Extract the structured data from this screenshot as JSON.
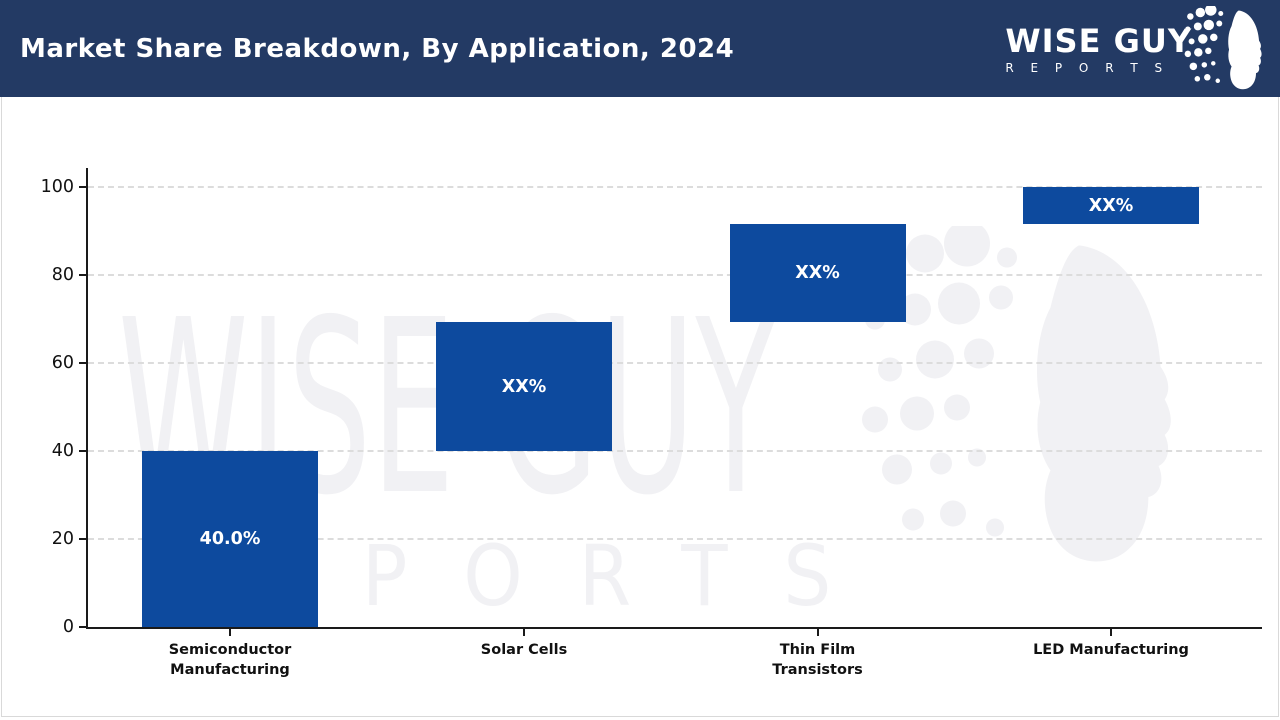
{
  "header": {
    "title": "Market Share Breakdown, By Application, 2024",
    "logo": {
      "line1": "WISE GUY",
      "line2": "R E P O R T S"
    }
  },
  "watermark": {
    "line1": "WISE GUY",
    "line2": "REPORTS"
  },
  "chart_data": {
    "type": "bar",
    "subtype": "waterfall-floating-bars",
    "title": "Market Share Breakdown, By Application, 2024",
    "categories": [
      "Semiconductor\nManufacturing",
      "Solar Cells",
      "Thin Film\nTransistors",
      "LED Manufacturing"
    ],
    "segments": [
      {
        "category": "Semiconductor Manufacturing",
        "start": 0,
        "end": 40,
        "value_label": "40.0%"
      },
      {
        "category": "Solar Cells",
        "start": 40,
        "end": 69.3,
        "value_label": "XX%"
      },
      {
        "category": "Thin Film Transistors",
        "start": 69.3,
        "end": 91.5,
        "value_label": "XX%"
      },
      {
        "category": "LED Manufacturing",
        "start": 91.5,
        "end": 100,
        "value_label": "XX%"
      }
    ],
    "yticks": [
      0,
      20,
      40,
      60,
      80,
      100
    ],
    "ylim": [
      0,
      104
    ],
    "xlabel": "",
    "ylabel": "",
    "grid": true,
    "legend": false,
    "colors": {
      "bar": "#0d4a9e",
      "bar_label": "#ffffff",
      "grid_line": "#dcdcdc",
      "axis": "#1a1a1a",
      "tick_label": "#111111",
      "header_bg": "#233a64",
      "watermark": "#f1f1f4"
    }
  }
}
